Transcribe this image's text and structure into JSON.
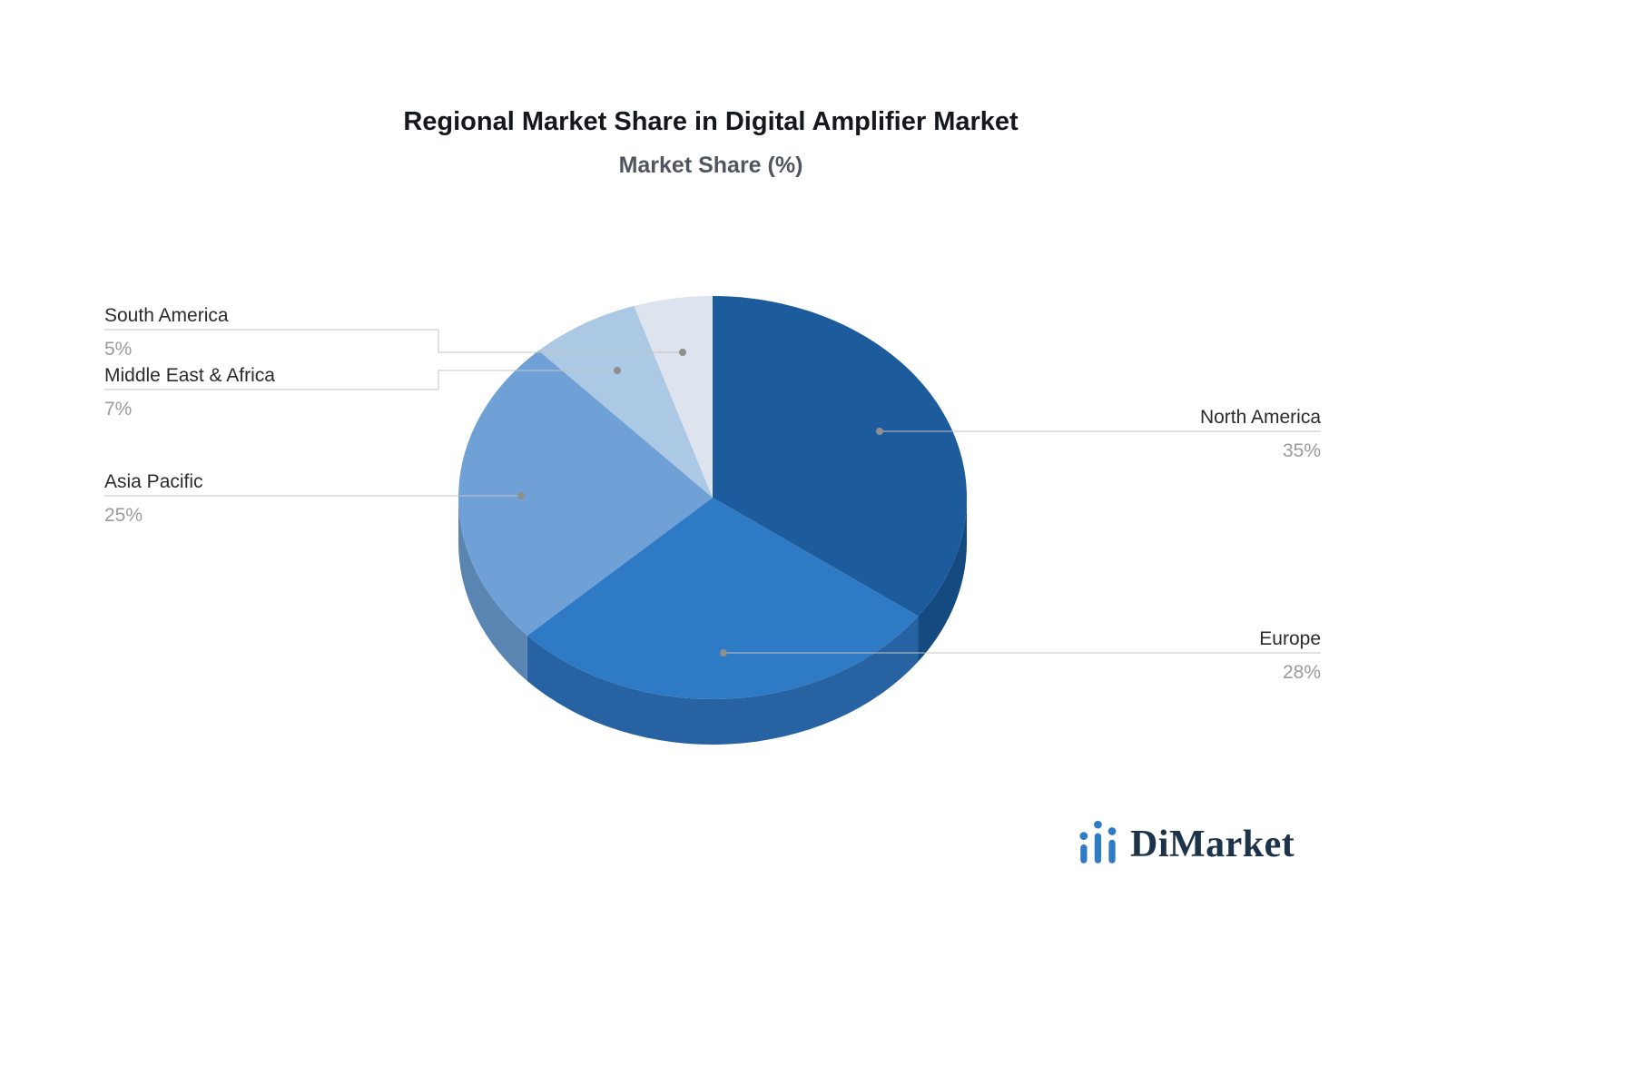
{
  "chart_data": {
    "type": "pie",
    "title": "Regional Market Share in Digital Amplifier Market",
    "subtitle": "Market Share (%)",
    "unit": "%",
    "categories": [
      "North America",
      "Europe",
      "Asia Pacific",
      "Middle East & Africa",
      "South America"
    ],
    "values": [
      35,
      28,
      25,
      7,
      5
    ],
    "labels": [
      "35%",
      "28%",
      "25%",
      "7%",
      "5%"
    ],
    "colors": [
      "#1c5c9c",
      "#2f7ac5",
      "#6fa0d6",
      "#abc8e4",
      "#dde4ee"
    ],
    "side_colors": [
      "#154a80",
      "#2763a2",
      "#5a84b2",
      "#8fa9c4",
      "#b9c3cf"
    ],
    "start_angle_deg": -90,
    "legend": "none",
    "labels_layout": "callout",
    "callout_line_color": "#c4c4c4",
    "callout_dot_color": "#8f8f8f",
    "label_color": "#2b2b2b",
    "value_color": "#9b9b9b"
  },
  "branding": {
    "logo_text": "DiMarket",
    "logo_color": "#1d3349",
    "icon_color": "#2e7bc6"
  }
}
